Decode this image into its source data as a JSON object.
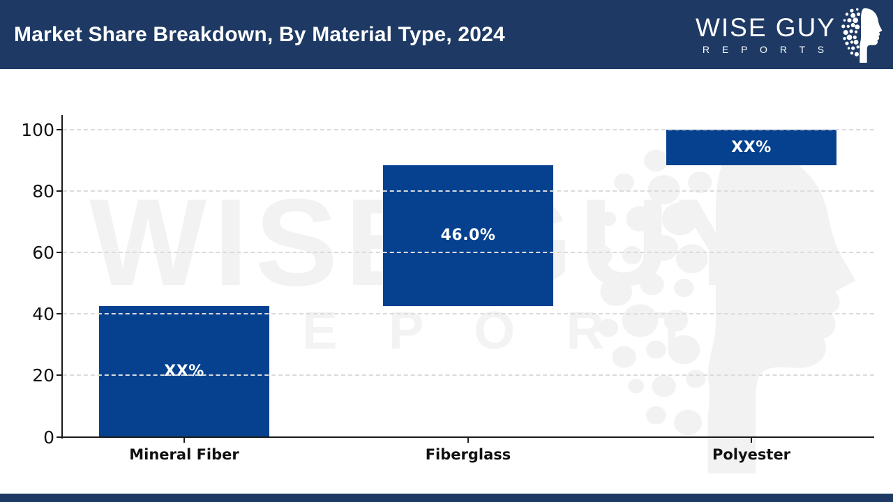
{
  "header": {
    "title": "Market Share Breakdown, By Material Type, 2024",
    "background_color": "#1E3A64",
    "logo": {
      "wordmark": "WISE GUY",
      "subtitle": "R E P O R T S"
    }
  },
  "watermark": {
    "wordmark": "WISE GUY",
    "subtitle": "R E P O R T S"
  },
  "chart_data": {
    "type": "bar",
    "subtype": "waterfall-stacked-percentage",
    "title": "Market Share Breakdown, By Material Type, 2024",
    "xlabel": "",
    "ylabel": "",
    "categories": [
      "Mineral Fiber",
      "Fiberglass",
      "Polyester"
    ],
    "segments": [
      {
        "category": "Mineral Fiber",
        "start": 0,
        "end": 42.5,
        "height": 42.5,
        "value_label": "XX%"
      },
      {
        "category": "Fiberglass",
        "start": 42.5,
        "end": 88.5,
        "height": 46.0,
        "value_label": "46.0%"
      },
      {
        "category": "Polyester",
        "start": 88.5,
        "end": 100,
        "height": 11.5,
        "value_label": "XX%"
      }
    ],
    "yticks": [
      0,
      20,
      40,
      60,
      80,
      100
    ],
    "ylim": [
      0,
      105
    ],
    "grid": {
      "horizontal": true,
      "style": "dashed",
      "color": "#DBDBDB"
    },
    "legend": "none",
    "bar_color": "#05418F",
    "bar_label_color": "#FFFFFF",
    "axis_color": "#1A1A1A",
    "tick_label_color": "#111111"
  },
  "footer": {
    "background_color": "#1E3A64"
  }
}
